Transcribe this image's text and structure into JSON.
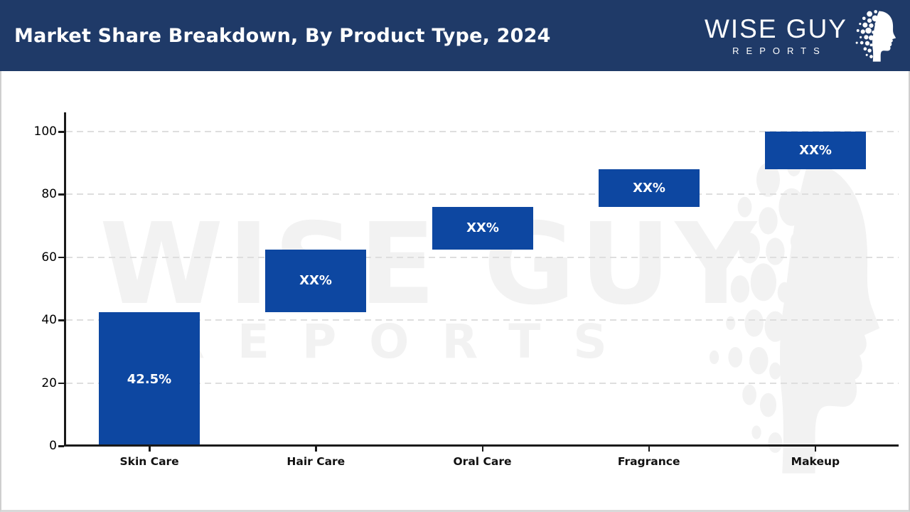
{
  "header": {
    "title": "Market Share Breakdown, By Product Type, 2024",
    "logo": {
      "line1": "WISE GUY",
      "line2": "REPORTS"
    }
  },
  "watermark": {
    "line1": "WISE GUY",
    "line2": "REPORTS"
  },
  "colors": {
    "header_bg": "#1f3a68",
    "bar": "#0d47a1",
    "bar_label": "#ffffff",
    "axis": "#1a1a1a",
    "gridline": "#dedede",
    "watermark": "#f2f2f2",
    "canvas_border": "#cfcfcf"
  },
  "chart_data": {
    "type": "bar",
    "subtype": "waterfall",
    "title": "Market Share Breakdown, By Product Type, 2024",
    "xlabel": "",
    "ylabel": "",
    "categories": [
      "Skin Care",
      "Hair Care",
      "Oral Care",
      "Fragrance",
      "Makeup"
    ],
    "segments": [
      {
        "category": "Skin Care",
        "start": 0,
        "end": 42.5,
        "value": 42.5,
        "label": "42.5%"
      },
      {
        "category": "Hair Care",
        "start": 42.5,
        "end": 62.5,
        "value": 20,
        "label": "XX%"
      },
      {
        "category": "Oral Care",
        "start": 62.5,
        "end": 76,
        "value": 13.5,
        "label": "XX%"
      },
      {
        "category": "Fragrance",
        "start": 76,
        "end": 88,
        "value": 12,
        "label": "XX%"
      },
      {
        "category": "Makeup",
        "start": 88,
        "end": 100,
        "value": 12,
        "label": "XX%"
      }
    ],
    "ylim": [
      0,
      100
    ],
    "yticks": [
      0,
      20,
      40,
      60,
      80,
      100
    ],
    "grid": "horizontal-dashed",
    "legend": "none",
    "bar_color": "#0d47a1",
    "label_color": "#ffffff"
  }
}
